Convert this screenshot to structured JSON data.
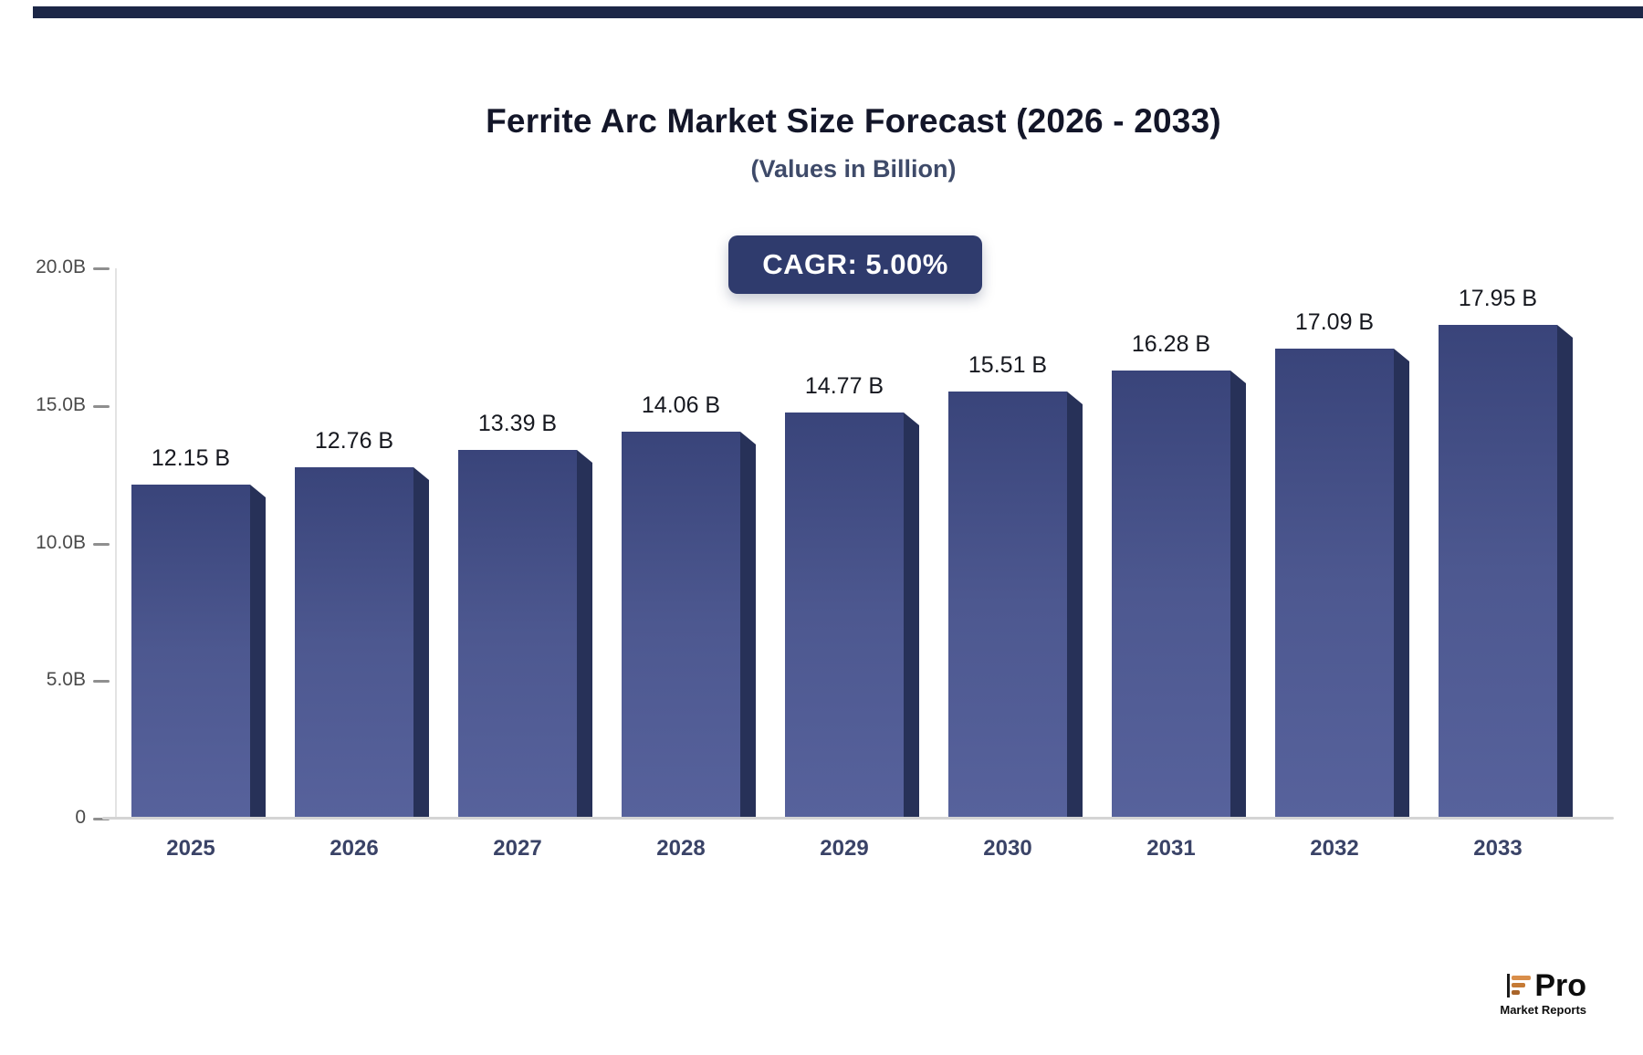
{
  "page": {
    "top_bar_color": "#1c2747",
    "background_color": "#ffffff"
  },
  "header": {
    "title": "Ferrite Arc Market Size Forecast (2026 - 2033)",
    "subtitle": "(Values in Billion)",
    "cagr_badge": "CAGR: 5.00%",
    "badge_color": "#2f3b6d"
  },
  "chart_data": {
    "type": "bar",
    "title": "Ferrite Arc Market Size Forecast (2026 - 2033)",
    "subtitle": "(Values in Billion)",
    "categories": [
      "2025",
      "2026",
      "2027",
      "2028",
      "2029",
      "2030",
      "2031",
      "2032",
      "2033"
    ],
    "values": [
      12.15,
      12.76,
      13.39,
      14.06,
      14.77,
      15.51,
      16.28,
      17.09,
      17.95
    ],
    "value_labels": [
      "12.15 B",
      "12.76 B",
      "13.39 B",
      "14.06 B",
      "14.77 B",
      "15.51 B",
      "16.28 B",
      "17.09 B",
      "17.95 B"
    ],
    "xlabel": "",
    "ylabel": "",
    "ylim": [
      0,
      20
    ],
    "yticks": [
      {
        "label": "20.0B",
        "value": 20
      },
      {
        "label": "15.0B",
        "value": 15
      },
      {
        "label": "10.0B",
        "value": 10
      },
      {
        "label": "5.0B",
        "value": 5
      },
      {
        "label": "0",
        "value": 0
      }
    ],
    "grid": false,
    "legend": false,
    "bar_colors": {
      "top": "#39447a",
      "mid": "#4d5890",
      "bottom": "#57629c",
      "side": "#273158"
    }
  },
  "branding": {
    "logo_main": "Pro",
    "logo_sub": "Market Reports"
  }
}
